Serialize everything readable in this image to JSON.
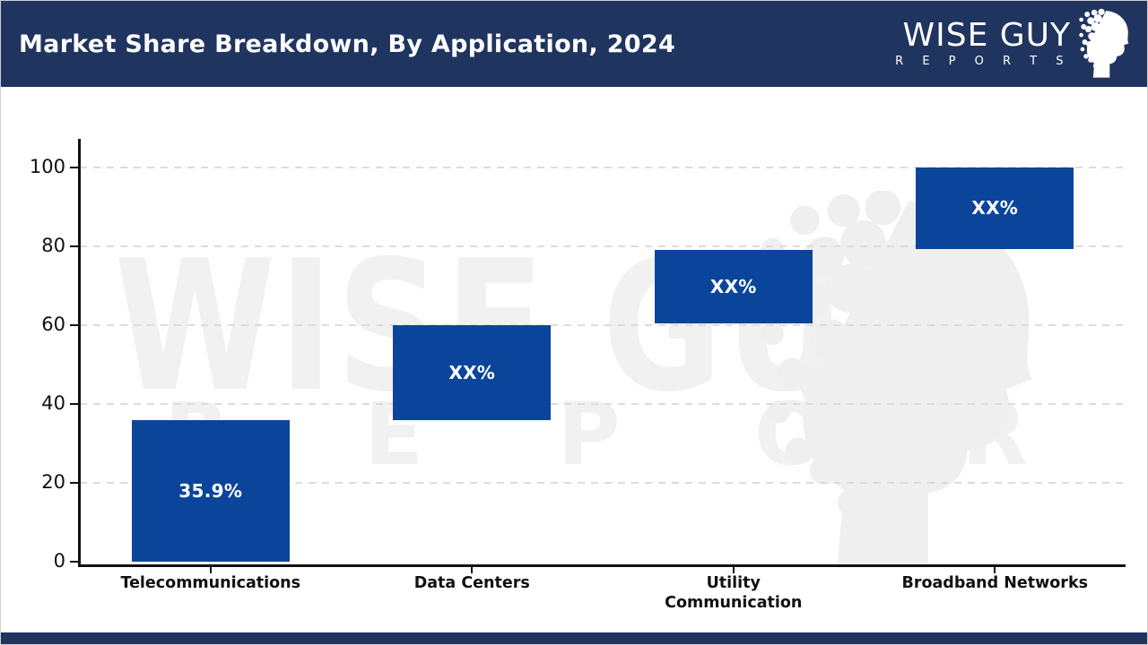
{
  "header": {
    "title": "Market Share Breakdown, By Application, 2024",
    "logo": {
      "line1": "WISE GUY",
      "line2": "R E P O R T S"
    }
  },
  "watermark": {
    "line1": "WISE GUY",
    "line2": "R E P O R T S"
  },
  "colors": {
    "header_bg": "#203460",
    "bar": "#0b459b",
    "bar_label": "#ffffff",
    "grid": "#dcdcdc",
    "axis": "#111111",
    "watermark": "#f1f1f1"
  },
  "chart_data": {
    "type": "bar",
    "subtype": "waterfall",
    "title": "Market Share Breakdown, By Application, 2024",
    "categories": [
      "Telecommunications",
      "Data Centers",
      "Utility Communication",
      "Broadband Networks"
    ],
    "tick_labels": [
      "Telecommunications",
      "Data Centers",
      "Utility\nCommunication",
      "Broadband Networks"
    ],
    "series": [
      {
        "name": "Market share (%)",
        "segments": [
          {
            "category": "Telecommunications",
            "start": 0,
            "end": 35.9,
            "label": "35.9%"
          },
          {
            "category": "Data Centers",
            "start": 35.9,
            "end": 59.9,
            "label": "XX%"
          },
          {
            "category": "Utility Communication",
            "start": 60.4,
            "end": 79.2,
            "label": "XX%"
          },
          {
            "category": "Broadband Networks",
            "start": 79.4,
            "end": 100,
            "label": "XX%"
          }
        ]
      }
    ],
    "xlabel": "",
    "ylabel": "",
    "ylim": [
      0,
      100
    ],
    "yticks": [
      0,
      20,
      40,
      60,
      80,
      100
    ],
    "grid": "horizontal-dashed",
    "legend": "none"
  }
}
